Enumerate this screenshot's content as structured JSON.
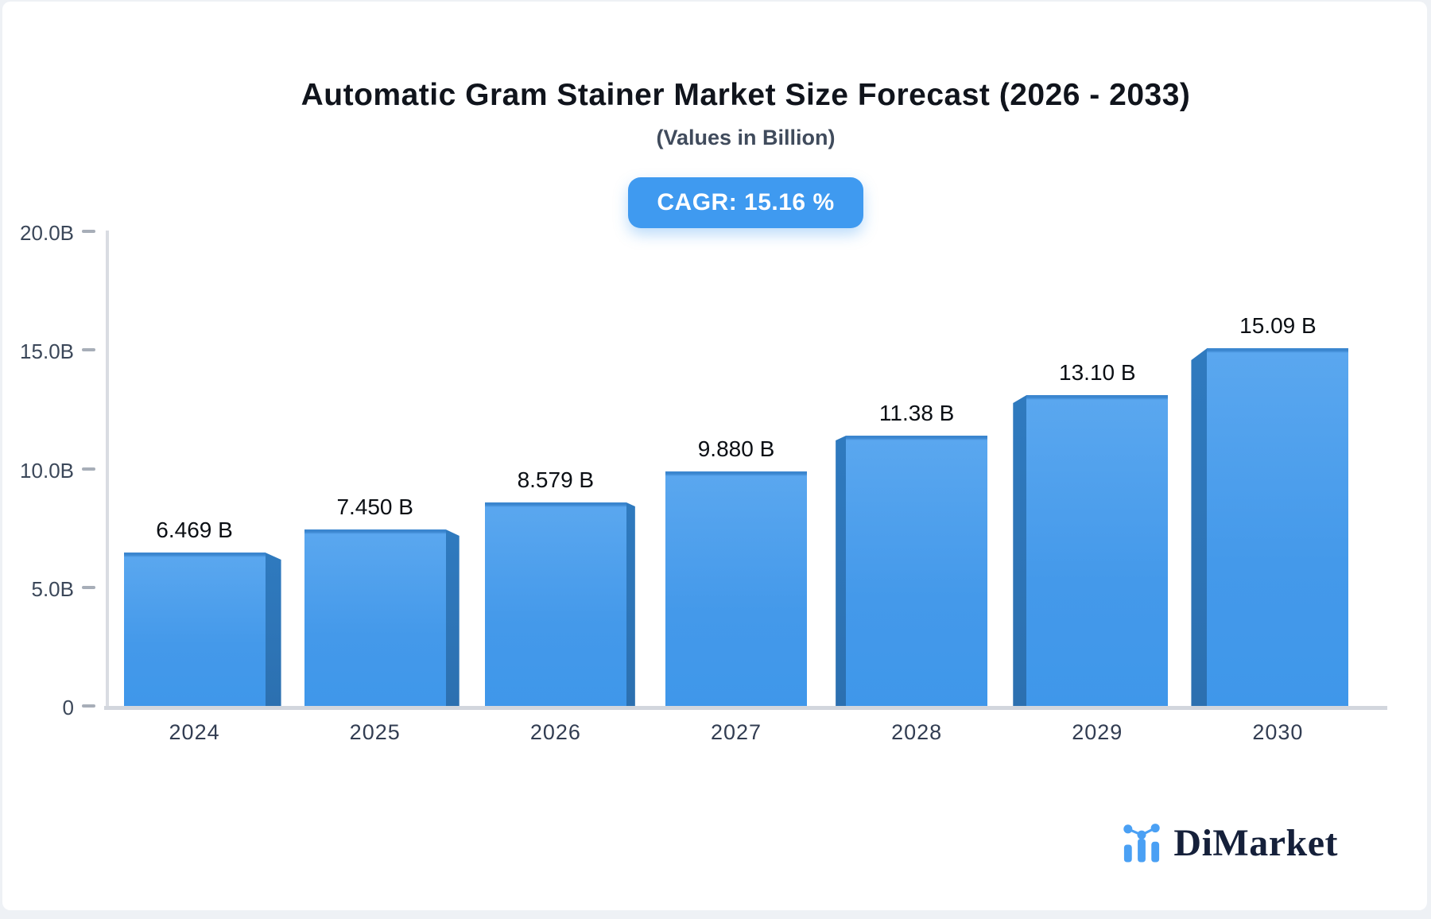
{
  "header": {
    "title": "Automatic Gram Stainer Market Size Forecast (2026 - 2033)",
    "subtitle": "(Values in Billion)",
    "cagr_label": "CAGR: 15.16 %"
  },
  "chart_data": {
    "type": "bar",
    "title": "Automatic Gram Stainer Market Size Forecast (2026 - 2033)",
    "subtitle": "(Values in Billion)",
    "categories": [
      "2024",
      "2025",
      "2026",
      "2027",
      "2028",
      "2029",
      "2030"
    ],
    "values": [
      6.469,
      7.45,
      8.579,
      9.88,
      11.38,
      13.1,
      15.09
    ],
    "bar_labels": [
      "6.469 B",
      "7.450 B",
      "8.579 B",
      "9.880 B",
      "11.38 B",
      "13.10 B",
      "15.09 B"
    ],
    "xlabel": "",
    "ylabel": "",
    "ylim": [
      0,
      20
    ],
    "yticks": [
      {
        "value": 20,
        "label": "20.0B"
      },
      {
        "value": 15,
        "label": "15.0B"
      },
      {
        "value": 10,
        "label": "10.0B"
      },
      {
        "value": 5,
        "label": "5.0B"
      },
      {
        "value": 0,
        "label": "0"
      }
    ],
    "grid": false,
    "legend": "none",
    "bar_style_3d": true
  },
  "branding": {
    "logo_text": "DiMarket",
    "logo_icon": "bar-chart-dots-icon"
  },
  "colors": {
    "bar_front_top": "#5aa7ef",
    "bar_front_bottom": "#3f97ea",
    "bar_top_edge": "#3b86cf",
    "bar_side": "#2e76b9",
    "badge_background": "#3f9af0",
    "badge_text": "#ffffff",
    "title_text": "#10141c",
    "subtitle_text": "#404b5c",
    "axis_label_text": "#3b4759",
    "axis_line": "#d9dce2",
    "logo_blue": "#4aa0f4",
    "logo_navy": "#15203a",
    "card_background": "#ffffff",
    "page_background": "#eef1f5"
  }
}
